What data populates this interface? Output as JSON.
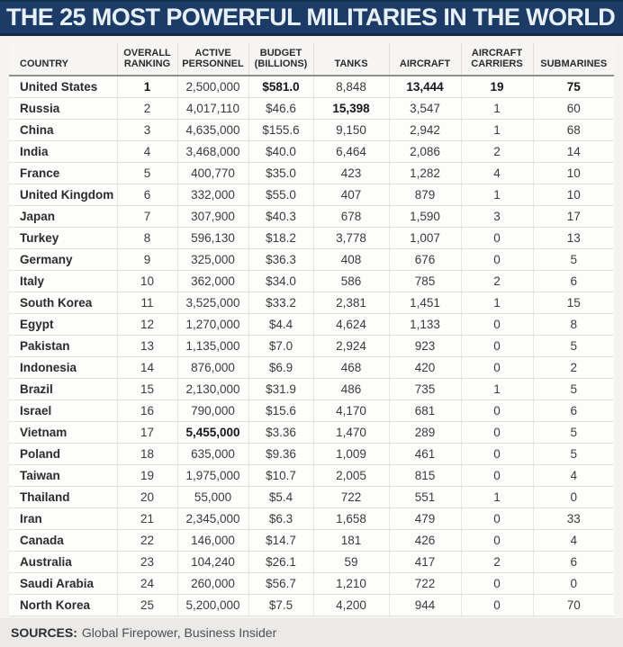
{
  "title": "THE 25 MOST POWERFUL MILITARIES IN THE WORLD",
  "colors": {
    "title_bar": "#1c3b66",
    "title_bar_border": "#122947",
    "title_text": "#e9f1f8",
    "page_bg": "#f4f3f1",
    "table_bg": "#fdfdfc",
    "header_underline": "#8e8e8c",
    "grid_line": "#e3e2e0",
    "footer_bg": "#ebeae8"
  },
  "chart_data": {
    "type": "table",
    "title": "THE 25 MOST POWERFUL MILITARIES IN THE WORLD",
    "columns": [
      {
        "id": "country",
        "label": "COUNTRY"
      },
      {
        "id": "overall-ranking",
        "label": "OVERALL RANKING"
      },
      {
        "id": "active-personnel",
        "label": "ACTIVE PERSONNEL"
      },
      {
        "id": "budget-billions",
        "label": "BUDGET (BILLIONS)"
      },
      {
        "id": "tanks",
        "label": "TANKS"
      },
      {
        "id": "aircraft",
        "label": "AIRCRAFT"
      },
      {
        "id": "aircraft-carriers",
        "label": "AIRCRAFT CARRIERS"
      },
      {
        "id": "submarines",
        "label": "SUBMARINES"
      }
    ],
    "rows": [
      {
        "country": "United States",
        "values": [
          "1",
          "2,500,000",
          "$581.0",
          "8,848",
          "13,444",
          "19",
          "75"
        ],
        "bold": [
          0,
          2,
          4,
          5,
          6
        ]
      },
      {
        "country": "Russia",
        "values": [
          "2",
          "4,017,110",
          "$46.6",
          "15,398",
          "3,547",
          "1",
          "60"
        ],
        "bold": [
          3
        ]
      },
      {
        "country": "China",
        "values": [
          "3",
          "4,635,000",
          "$155.6",
          "9,150",
          "2,942",
          "1",
          "68"
        ],
        "bold": []
      },
      {
        "country": "India",
        "values": [
          "4",
          "3,468,000",
          "$40.0",
          "6,464",
          "2,086",
          "2",
          "14"
        ],
        "bold": []
      },
      {
        "country": "France",
        "values": [
          "5",
          "400,770",
          "$35.0",
          "423",
          "1,282",
          "4",
          "10"
        ],
        "bold": []
      },
      {
        "country": "United Kingdom",
        "values": [
          "6",
          "332,000",
          "$55.0",
          "407",
          "879",
          "1",
          "10"
        ],
        "bold": []
      },
      {
        "country": "Japan",
        "values": [
          "7",
          "307,900",
          "$40.3",
          "678",
          "1,590",
          "3",
          "17"
        ],
        "bold": []
      },
      {
        "country": "Turkey",
        "values": [
          "8",
          "596,130",
          "$18.2",
          "3,778",
          "1,007",
          "0",
          "13"
        ],
        "bold": []
      },
      {
        "country": "Germany",
        "values": [
          "9",
          "325,000",
          "$36.3",
          "408",
          "676",
          "0",
          "5"
        ],
        "bold": []
      },
      {
        "country": "Italy",
        "values": [
          "10",
          "362,000",
          "$34.0",
          "586",
          "785",
          "2",
          "6"
        ],
        "bold": []
      },
      {
        "country": "South Korea",
        "values": [
          "11",
          "3,525,000",
          "$33.2",
          "2,381",
          "1,451",
          "1",
          "15"
        ],
        "bold": []
      },
      {
        "country": "Egypt",
        "values": [
          "12",
          "1,270,000",
          "$4.4",
          "4,624",
          "1,133",
          "0",
          "8"
        ],
        "bold": []
      },
      {
        "country": "Pakistan",
        "values": [
          "13",
          "1,135,000",
          "$7.0",
          "2,924",
          "923",
          "0",
          "5"
        ],
        "bold": []
      },
      {
        "country": "Indonesia",
        "values": [
          "14",
          "876,000",
          "$6.9",
          "468",
          "420",
          "0",
          "2"
        ],
        "bold": []
      },
      {
        "country": "Brazil",
        "values": [
          "15",
          "2,130,000",
          "$31.9",
          "486",
          "735",
          "1",
          "5"
        ],
        "bold": []
      },
      {
        "country": "Israel",
        "values": [
          "16",
          "790,000",
          "$15.6",
          "4,170",
          "681",
          "0",
          "6"
        ],
        "bold": []
      },
      {
        "country": "Vietnam",
        "values": [
          "17",
          "5,455,000",
          "$3.36",
          "1,470",
          "289",
          "0",
          "5"
        ],
        "bold": [
          1
        ]
      },
      {
        "country": "Poland",
        "values": [
          "18",
          "635,000",
          "$9.36",
          "1,009",
          "461",
          "0",
          "5"
        ],
        "bold": []
      },
      {
        "country": "Taiwan",
        "values": [
          "19",
          "1,975,000",
          "$10.7",
          "2,005",
          "815",
          "0",
          "4"
        ],
        "bold": []
      },
      {
        "country": "Thailand",
        "values": [
          "20",
          "55,000",
          "$5.4",
          "722",
          "551",
          "1",
          "0"
        ],
        "bold": []
      },
      {
        "country": "Iran",
        "values": [
          "21",
          "2,345,000",
          "$6.3",
          "1,658",
          "479",
          "0",
          "33"
        ],
        "bold": []
      },
      {
        "country": "Canada",
        "values": [
          "22",
          "146,000",
          "$14.7",
          "181",
          "426",
          "0",
          "4"
        ],
        "bold": []
      },
      {
        "country": "Australia",
        "values": [
          "23",
          "104,240",
          "$26.1",
          "59",
          "417",
          "2",
          "6"
        ],
        "bold": []
      },
      {
        "country": "Saudi Arabia",
        "values": [
          "24",
          "260,000",
          "$56.7",
          "1,210",
          "722",
          "0",
          "0"
        ],
        "bold": []
      },
      {
        "country": "North Korea",
        "values": [
          "25",
          "5,200,000",
          "$7.5",
          "4,200",
          "944",
          "0",
          "70"
        ],
        "bold": []
      }
    ]
  },
  "footer": {
    "label": "SOURCES:",
    "text": "Global Firepower, Business Insider"
  }
}
